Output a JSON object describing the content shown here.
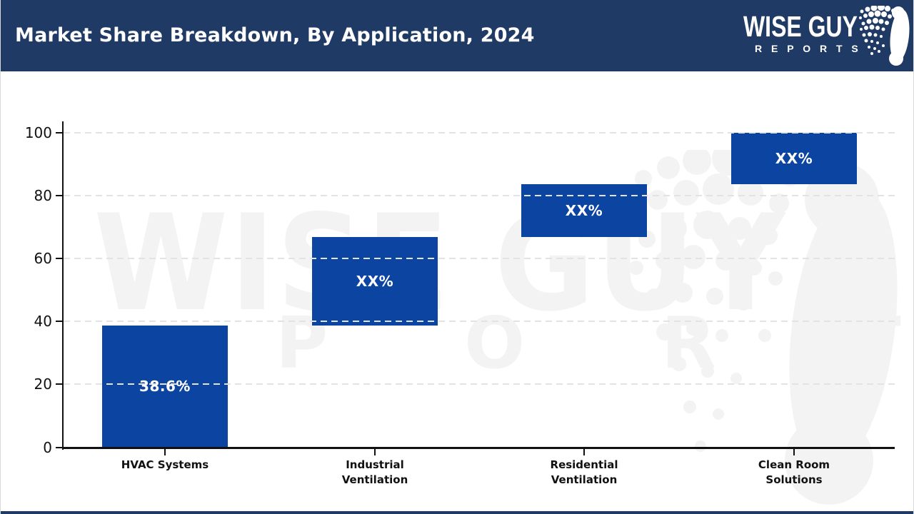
{
  "header": {
    "title": "Market Share Breakdown, By Application, 2024",
    "brand": {
      "name": "WISE GUY",
      "subtitle": "R E P O R T S",
      "icon": "face-dots-icon"
    }
  },
  "watermark": {
    "line1": "WISE GUY",
    "line2": "P O R T S",
    "icon": "face-dots-watermark-icon"
  },
  "chart_data": {
    "type": "bar",
    "subtype": "waterfall",
    "title": "Market Share Breakdown, By Application, 2024",
    "xlabel": "",
    "ylabel": "",
    "ylim": [
      0,
      100
    ],
    "yticks": [
      0,
      20,
      40,
      60,
      80,
      100
    ],
    "grid": "horizontal-dashed-above-bars",
    "legend": "none",
    "categories": [
      "HVAC Systems",
      "Industrial Ventilation",
      "Residential Ventilation",
      "Clean Room Solutions"
    ],
    "categories_lines": [
      [
        "HVAC Systems"
      ],
      [
        "Industrial",
        "Ventilation"
      ],
      [
        "Residential",
        "Ventilation"
      ],
      [
        "Clean Room",
        "Solutions"
      ]
    ],
    "segments": [
      {
        "category": "HVAC Systems",
        "start": 0,
        "end": 38.6,
        "label": "38.6%"
      },
      {
        "category": "Industrial Ventilation",
        "start": 38.6,
        "end": 66.8,
        "label": "XX%"
      },
      {
        "category": "Residential Ventilation",
        "start": 66.8,
        "end": 83.5,
        "label": "XX%"
      },
      {
        "category": "Clean Room Solutions",
        "start": 83.5,
        "end": 99.8,
        "label": "XX%"
      }
    ],
    "colors": {
      "bar": "#0b45a1",
      "bar_label": "#ffffff",
      "grid": "#e3e3e3",
      "axis": "#111111",
      "header_bg": "#203a66",
      "watermark": "#f3f3f3"
    }
  }
}
